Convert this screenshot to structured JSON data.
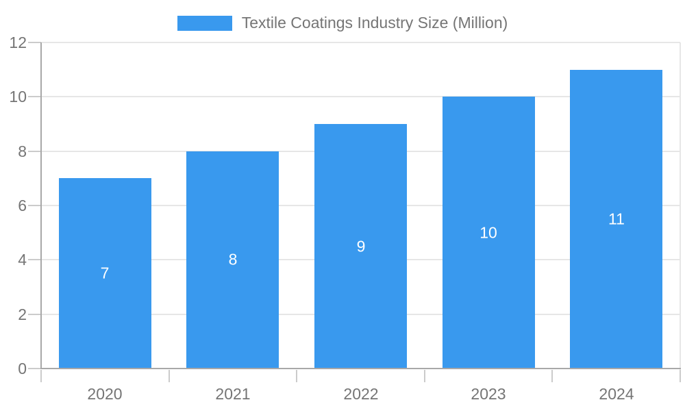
{
  "chart_data": {
    "type": "bar",
    "title": "Textile Coatings Industry Size (Million)",
    "categories": [
      "2020",
      "2021",
      "2022",
      "2023",
      "2024"
    ],
    "values": [
      7,
      8,
      9,
      10,
      11
    ],
    "yticks": [
      0,
      2,
      4,
      6,
      8,
      10,
      12
    ],
    "ylim": [
      0,
      12
    ],
    "xlabel": "",
    "ylabel": "",
    "legend_position": "top-center",
    "grid": "horizontal",
    "bar_value_labels_shown": true,
    "colors": {
      "bar": "#3999ee",
      "axis_line": "#a8a8a8",
      "gridline": "#e6e6e6",
      "tick": "#cbcbcb",
      "axis_text": "#757575",
      "bar_label_text": "#ffffff",
      "background": "#ffffff"
    }
  }
}
